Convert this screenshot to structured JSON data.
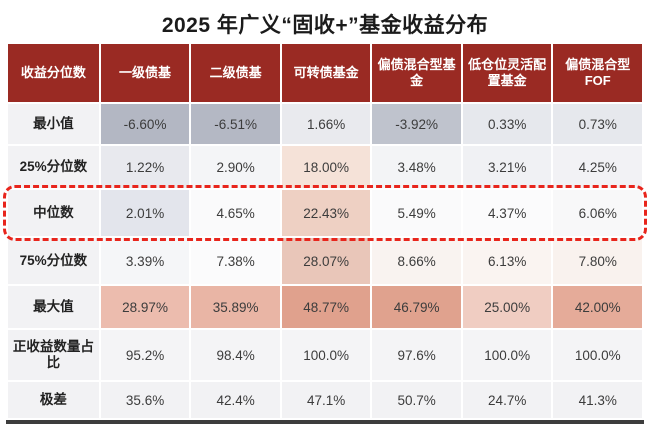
{
  "title": "2025 年广义“固收+”基金收益分布",
  "table": {
    "header": [
      "收益分位数",
      "一级债基",
      "二级债基",
      "可转债基金",
      "偏债混合型基金",
      "低仓位灵活配置基金",
      "偏债混合型FOF"
    ],
    "rows": [
      {
        "label": "最小值",
        "values": [
          "-6.60%",
          "-6.51%",
          "1.66%",
          "-3.92%",
          "0.33%",
          "0.73%"
        ],
        "cell_colors": [
          "#b3b7c3",
          "#b4b8c4",
          "#e9eaee",
          "#bfc3cd",
          "#e6e8ed",
          "#e6e8ed"
        ],
        "highlighted": false
      },
      {
        "label": "25%分位数",
        "values": [
          "1.22%",
          "2.90%",
          "18.00%",
          "3.48%",
          "3.21%",
          "4.25%"
        ],
        "cell_colors": [
          "#e8e9ee",
          "#f4f5f7",
          "#f5e2d8",
          "#f3f4f6",
          "#f0f1f4",
          "#f2f2f5"
        ],
        "highlighted": false
      },
      {
        "label": "中位数",
        "values": [
          "2.01%",
          "4.65%",
          "22.43%",
          "5.49%",
          "4.37%",
          "6.06%"
        ],
        "cell_colors": [
          "#e3e5ec",
          "#fafafb",
          "#eed0c3",
          "#fafafb",
          "#fbfbfc",
          "#f8f8f9"
        ],
        "highlighted": true
      },
      {
        "label": "75%分位数",
        "values": [
          "3.39%",
          "7.38%",
          "28.07%",
          "8.66%",
          "6.13%",
          "7.80%"
        ],
        "cell_colors": [
          "#f5f6f8",
          "#fbfbfc",
          "#e9c6b9",
          "#f9f3f0",
          "#faf4f1",
          "#f9f2ee"
        ],
        "highlighted": false
      },
      {
        "label": "最大值",
        "values": [
          "28.97%",
          "35.89%",
          "48.77%",
          "46.79%",
          "25.00%",
          "42.00%"
        ],
        "cell_colors": [
          "#ecbcae",
          "#e9b5a5",
          "#e0a18d",
          "#e0a28e",
          "#f0cdc2",
          "#e5ab99"
        ],
        "highlighted": false
      },
      {
        "label": "正收益数量占比",
        "values": [
          "95.2%",
          "98.4%",
          "100.0%",
          "97.6%",
          "100.0%",
          "100.0%"
        ],
        "cell_colors": [
          "#f4f4f6",
          "#f4f4f6",
          "#f4f4f6",
          "#f4f4f6",
          "#f4f4f6",
          "#f4f4f6"
        ],
        "highlighted": false
      },
      {
        "label": "极差",
        "values": [
          "35.6%",
          "42.4%",
          "47.1%",
          "50.7%",
          "24.7%",
          "41.3%"
        ],
        "cell_colors": [
          "#f2f2f4",
          "#f2f2f4",
          "#f2f2f4",
          "#f2f2f4",
          "#f2f2f4",
          "#f2f2f4"
        ],
        "highlighted": false
      }
    ]
  },
  "colors": {
    "header_bg": "#9a2a23",
    "header_text": "#ffffff",
    "label_bg": "#f2f2f4",
    "highlight_border": "#e8251c",
    "bottom_rule": "#3d3d3d",
    "heat_low": "#b3b7c3",
    "heat_high": "#e0a18d"
  },
  "chart_data": {
    "type": "table",
    "title": "2025 年广义“固收+”基金收益分布",
    "columns": [
      "一级债基",
      "二级债基",
      "可转债基金",
      "偏债混合型基金",
      "低仓位灵活配置基金",
      "偏债混合型FOF"
    ],
    "row_labels": [
      "最小值",
      "25%分位数",
      "中位数",
      "75%分位数",
      "最大值",
      "正收益数量占比",
      "极差"
    ],
    "values_percent": [
      [
        -6.6,
        -6.51,
        1.66,
        -3.92,
        0.33,
        0.73
      ],
      [
        1.22,
        2.9,
        18.0,
        3.48,
        3.21,
        4.25
      ],
      [
        2.01,
        4.65,
        22.43,
        5.49,
        4.37,
        6.06
      ],
      [
        3.39,
        7.38,
        28.07,
        8.66,
        6.13,
        7.8
      ],
      [
        28.97,
        35.89,
        48.77,
        46.79,
        25.0,
        42.0
      ],
      [
        95.2,
        98.4,
        100.0,
        97.6,
        100.0,
        100.0
      ],
      [
        35.6,
        42.4,
        47.1,
        50.7,
        24.7,
        41.3
      ]
    ],
    "annotations": [
      "中位数 row emphasized with red dashed rounded rectangle"
    ],
    "layout_hints": {
      "heatmap_shading": "blue-gray for low/negative, salmon for high",
      "grid": "white cell gaps"
    }
  }
}
